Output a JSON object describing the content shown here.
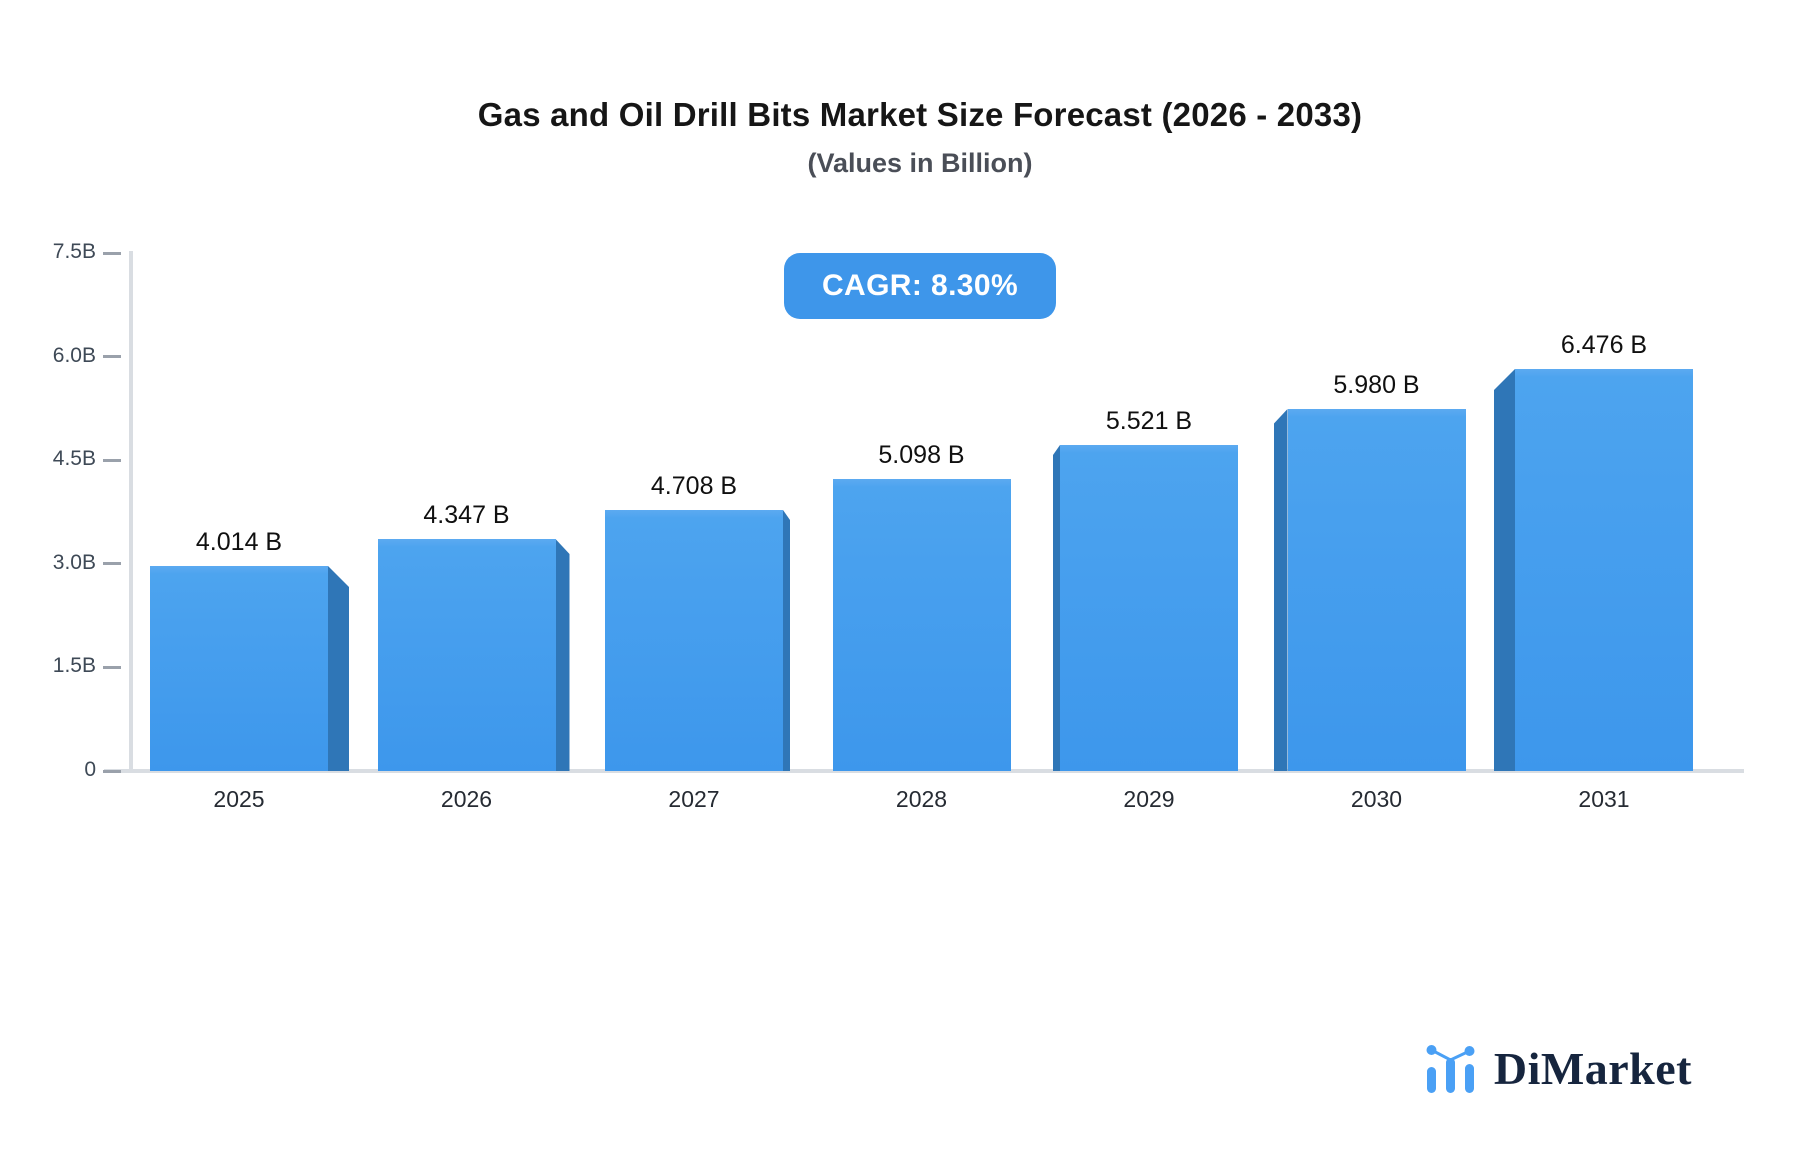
{
  "header": {
    "title": "Gas and Oil Drill Bits Market Size Forecast (2026 - 2033)",
    "subtitle": "(Values in Billion)"
  },
  "cagr_badge": {
    "text": "CAGR: 8.30%"
  },
  "chart_data": {
    "type": "bar",
    "title": "Gas and Oil Drill Bits Market Size Forecast (2026 - 2033)",
    "subtitle": "(Values in Billion)",
    "unit": "Billions (B)",
    "categories": [
      "2025",
      "2026",
      "2027",
      "2028",
      "2029",
      "2030",
      "2031"
    ],
    "values": [
      4.014,
      4.347,
      4.708,
      5.098,
      5.521,
      5.98,
      6.476
    ],
    "value_labels": [
      "4.014 B",
      "4.347 B",
      "4.708 B",
      "5.098 B",
      "5.521 B",
      "5.980 B",
      "6.476 B"
    ],
    "cagr": "8.30%",
    "y_axis": {
      "ticks": [
        "7.5B",
        "6.0B",
        "4.5B",
        "3.0B",
        "1.5B",
        "0"
      ],
      "min": 0,
      "max": 7.5
    },
    "legend": "none",
    "grid": "off",
    "bar_color": "#3E97EC",
    "bar_side_color": "#2F76B7",
    "accent_color": "#3E96EA"
  },
  "logo": {
    "text": "DiMarket"
  }
}
